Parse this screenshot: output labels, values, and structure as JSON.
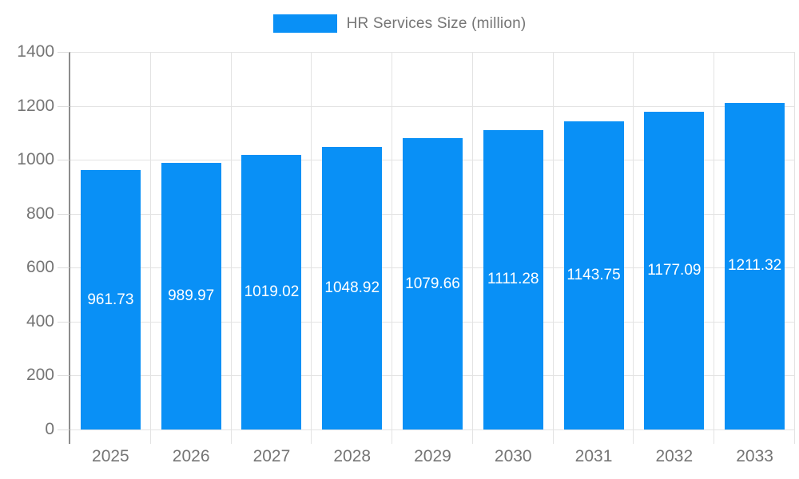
{
  "legend": {
    "label": "HR Services Size (million)"
  },
  "colors": {
    "bar": "#0990f6",
    "bar_label": "#ffffff",
    "axis_label": "#757575",
    "gridline": "#e3e3e3",
    "tick_mark": "#dcdcdc",
    "axis_line": "#8c8c8c",
    "background": "#ffffff"
  },
  "chart_data": {
    "type": "bar",
    "title": "HR Services Size (million)",
    "series_name": "HR Services Size (million)",
    "categories": [
      "2025",
      "2026",
      "2027",
      "2028",
      "2029",
      "2030",
      "2031",
      "2032",
      "2033"
    ],
    "values": [
      961.73,
      989.97,
      1019.02,
      1048.92,
      1079.66,
      1111.28,
      1143.75,
      1177.09,
      1211.32
    ],
    "value_labels": [
      "961.73",
      "989.97",
      "1019.02",
      "1048.92",
      "1079.66",
      "1111.28",
      "1143.75",
      "1177.09",
      "1211.32"
    ],
    "xlabel": "",
    "ylabel": "",
    "ylim": [
      0,
      1400
    ],
    "y_ticks": [
      0,
      200,
      400,
      600,
      800,
      1000,
      1200,
      1400
    ],
    "grid": true,
    "legend_position": "top",
    "bar_labels_visible": true
  }
}
